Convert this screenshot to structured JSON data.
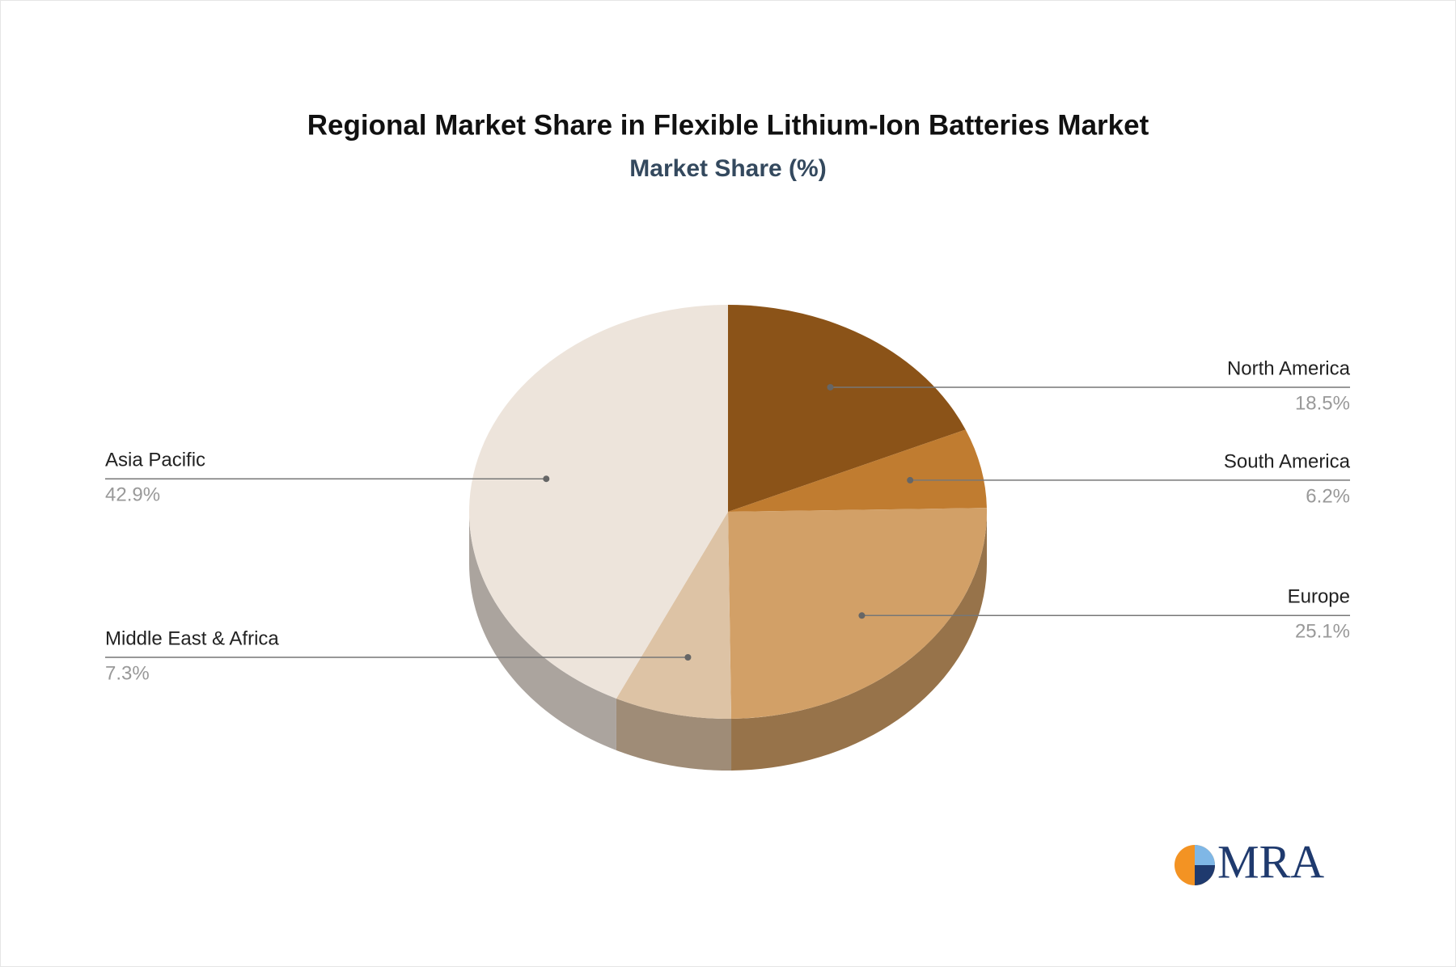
{
  "chart_data": {
    "type": "pie3d",
    "title": "Regional Market Share in Flexible Lithium-Ion Batteries Market",
    "subtitle": "Market Share (%)",
    "categories": [
      "North America",
      "South America",
      "Europe",
      "Middle East & Africa",
      "Asia Pacific"
    ],
    "values": [
      18.5,
      6.2,
      25.1,
      7.3,
      42.9
    ],
    "value_labels": [
      "18.5%",
      "6.2%",
      "25.1%",
      "7.3%",
      "42.9%"
    ],
    "colors": [
      "#8b5318",
      "#c07c30",
      "#d2a067",
      "#ddc3a5",
      "#ede4db"
    ]
  },
  "logo": "MRA"
}
